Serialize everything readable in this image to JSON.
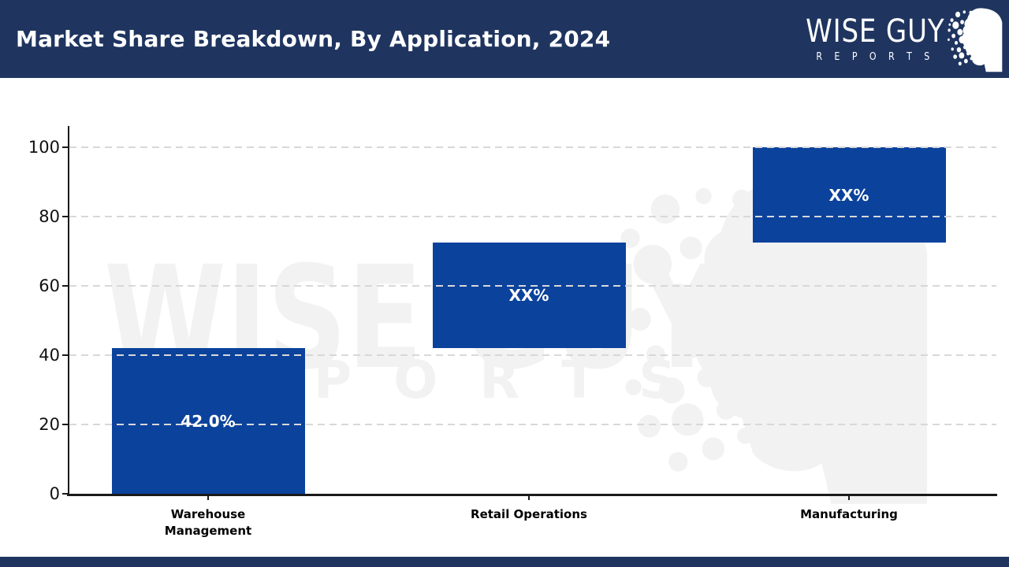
{
  "header": {
    "title": "Market Share Breakdown, By Application, 2024",
    "logo": {
      "name": "WISE GUY",
      "sub": "R E P O R T S"
    }
  },
  "watermark": {
    "line1": "WISE GUY",
    "line2": "R E P O R T S"
  },
  "footer": {},
  "colors": {
    "header_bg": "#1F3560",
    "footer_bg": "#1F3560",
    "bar": "#0B429C",
    "bar_label": "#FFFFFF",
    "grid": "#D8D8D8",
    "axis": "#1A1A1A",
    "watermark": "#F2F2F2"
  },
  "chart_data": {
    "type": "bar",
    "subtype": "stacked-waterfall-percentage",
    "title": "Market Share Breakdown, By Application, 2024",
    "categories": [
      "Warehouse Management",
      "Retail Operations",
      "Manufacturing"
    ],
    "category_lines": [
      [
        "Warehouse",
        "Management"
      ],
      [
        "Retail Operations"
      ],
      [
        "Manufacturing"
      ]
    ],
    "segments": [
      {
        "category": "Warehouse Management",
        "start": 0,
        "end": 42,
        "label": "42.0%"
      },
      {
        "category": "Retail Operations",
        "start": 42,
        "end": 72.5,
        "label": "XX%"
      },
      {
        "category": "Manufacturing",
        "start": 72.5,
        "end": 100,
        "label": "XX%"
      }
    ],
    "xlabel": "",
    "ylabel": "",
    "ylim": [
      0,
      100
    ],
    "yticks": [
      0,
      20,
      40,
      60,
      80,
      100
    ],
    "grid": "horizontal-dashed",
    "legend": "none"
  }
}
